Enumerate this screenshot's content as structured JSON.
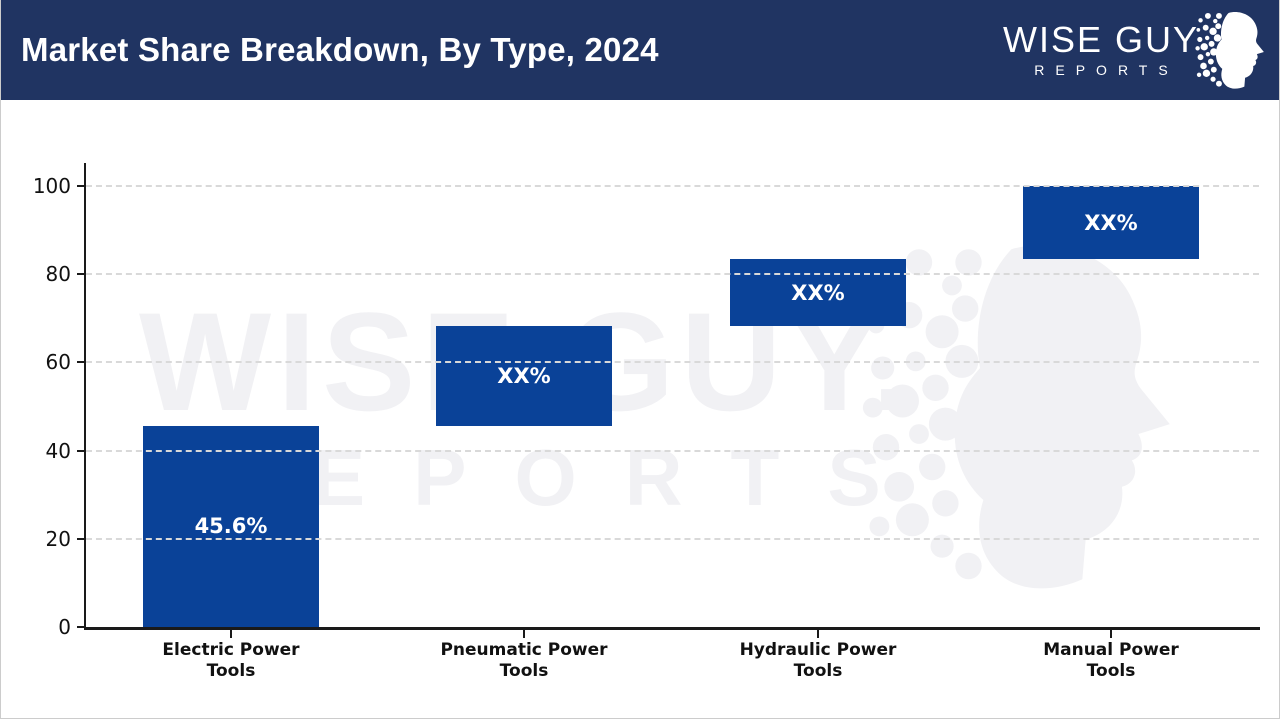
{
  "header": {
    "title": "Market Share Breakdown, By Type, 2024",
    "logo": {
      "line1": "WISE GUY",
      "line2": "REPORTS"
    }
  },
  "watermark": {
    "line1": "WISE GUY.",
    "line2": "REPORTS"
  },
  "colors": {
    "header_bg": "#203462",
    "bar": "#0a4298",
    "grid": "#d9d9d9",
    "axis": "#1a1a1a",
    "watermark": "#f1f1f4",
    "label_on_bar": "#ffffff"
  },
  "chart_data": {
    "type": "bar",
    "subtype": "waterfall",
    "title": "Market Share Breakdown, By Type, 2024",
    "categories": [
      "Electric Power Tools",
      "Pneumatic Power Tools",
      "Hydraulic Power Tools",
      "Manual Power Tools"
    ],
    "category_lines": [
      [
        "Electric Power",
        "Tools"
      ],
      [
        "Pneumatic Power",
        "Tools"
      ],
      [
        "Hydraulic Power",
        "Tools"
      ],
      [
        "Manual Power Tools"
      ]
    ],
    "segments": [
      {
        "category": "Electric Power Tools",
        "start": 0,
        "end": 45.6,
        "label": "45.6%"
      },
      {
        "category": "Pneumatic Power Tools",
        "start": 45.6,
        "end": 68.3,
        "label": "XX%"
      },
      {
        "category": "Hydraulic Power Tools",
        "start": 68.3,
        "end": 83.4,
        "label": "XX%"
      },
      {
        "category": "Manual Power Tools",
        "start": 83.4,
        "end": 100,
        "label": "XX%"
      }
    ],
    "ylim": [
      0,
      100
    ],
    "yticks": [
      0,
      20,
      40,
      60,
      80,
      100
    ],
    "xlabel": "",
    "ylabel": "",
    "grid": "horizontal-dashed",
    "legend": "none",
    "bar_color": "#0a4298"
  }
}
